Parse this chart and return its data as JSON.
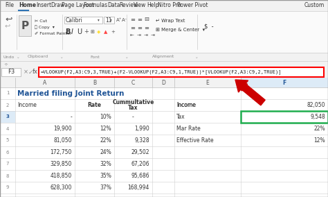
{
  "title": "Married filing Joint Return",
  "formula_text": "=VLOOKUP(F2,A3:C9,3,TRUE)+(F2-VLOOKUP(F2,A3:C9,1,TRUE))*[VLOOKUP(F2,A3:C9,2,TRUE)]",
  "formula_cell": "F3",
  "menu_items": [
    "File",
    "Home",
    "Insert",
    "Draw",
    "Page Layout",
    "Formulas",
    "Data",
    "Review",
    "View",
    "Help",
    "Nitro Pro",
    "Power Pivot"
  ],
  "ribbon_sections": [
    "Undo",
    "Clipboard",
    "Font",
    "Alignment"
  ],
  "col_letters": [
    "A",
    "B",
    "C",
    "D",
    "E",
    "F"
  ],
  "row2_headers": [
    "Income",
    "Rate",
    "Cummultative\nTax",
    "",
    "Income"
  ],
  "table_data": [
    [
      "-",
      "10%",
      "-"
    ],
    [
      "19,900",
      "12%",
      "1,990"
    ],
    [
      "81,050",
      "22%",
      "9,328"
    ],
    [
      "172,750",
      "24%",
      "29,502"
    ],
    [
      "329,850",
      "32%",
      "67,206"
    ],
    [
      "418,850",
      "35%",
      "95,686"
    ],
    [
      "628,300",
      "37%",
      "168,994"
    ]
  ],
  "right_labels": [
    "Income",
    "Tax",
    "Mar Rate",
    "Effective Rate"
  ],
  "right_values": [
    "82,050",
    "9,548",
    "22%",
    "12%"
  ],
  "title_color": "#1F5496",
  "ribbon_bg": "#F2F2F2",
  "sheet_bg": "#FFFFFF",
  "header_row_bg": "#F2F2F2",
  "grid_color": "#D0D0D0",
  "formula_border_color": "#FF0000",
  "cell_f3_border": "#2ECC71",
  "col_f_header_bg": "#DDEBF7",
  "arrow_color": "#CC0000",
  "text_dark": "#333333",
  "text_gray": "#888888",
  "home_underline": "#2E74B5",
  "section_divider": "#CCCCCC"
}
